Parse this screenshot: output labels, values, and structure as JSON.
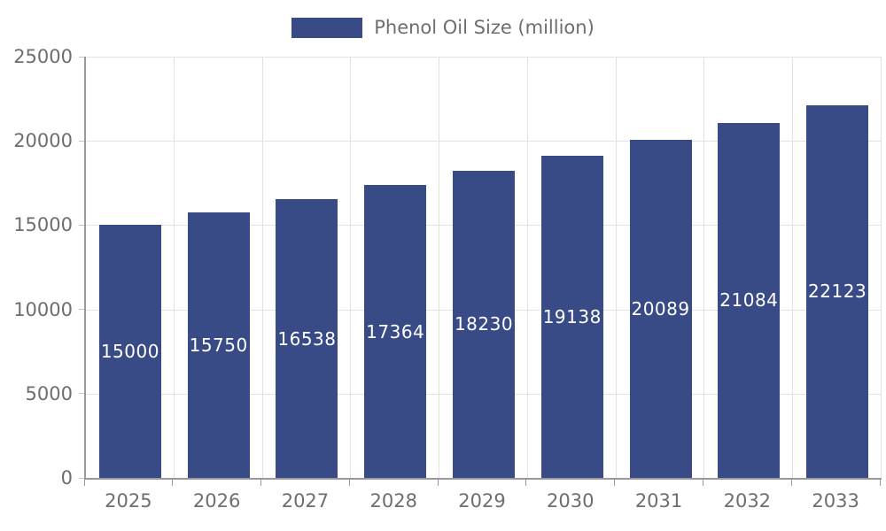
{
  "chart_data": {
    "type": "bar",
    "title": "",
    "series_name": "Phenol Oil Size (million)",
    "categories": [
      "2025",
      "2026",
      "2027",
      "2028",
      "2029",
      "2030",
      "2031",
      "2032",
      "2033"
    ],
    "values": [
      15000,
      15750,
      16538,
      17364,
      18230,
      19138,
      20089,
      21084,
      22123
    ],
    "xlabel": "",
    "ylabel": "",
    "ylim": [
      0,
      25000
    ],
    "yticks": [
      0,
      5000,
      10000,
      15000,
      20000,
      25000
    ],
    "grid": true,
    "legend_position": "top-center",
    "data_labels": "inside-center",
    "colors": {
      "bar": "#394B87",
      "bar_label": "#FFFFFF",
      "axis_line": "#999999",
      "gridline": "#E2E2E2",
      "tick_text": "#6E6E6E",
      "background": "#FFFFFF"
    }
  }
}
